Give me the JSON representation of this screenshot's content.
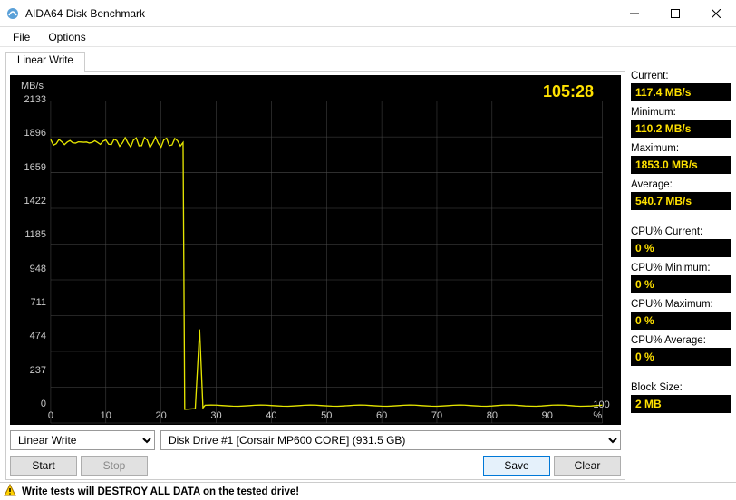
{
  "window": {
    "title": "AIDA64 Disk Benchmark"
  },
  "menu": {
    "file": "File",
    "options": "Options"
  },
  "tab": {
    "label": "Linear Write"
  },
  "chart": {
    "unit": "MB/s",
    "timer": "105:28",
    "xlim": [
      0,
      100
    ],
    "xunit": "%",
    "ylim": [
      0,
      2133
    ],
    "yticks": [
      0,
      237,
      474,
      711,
      948,
      1185,
      1422,
      1659,
      1896,
      2133
    ],
    "xticks": [
      0,
      10,
      20,
      30,
      40,
      50,
      60,
      70,
      80,
      90,
      100
    ],
    "line_color": "#e6e600",
    "grid_color": "#4a4a4a",
    "bg": "#000000",
    "plateau_y": 1860,
    "plateau_end_x": 24,
    "spike_x": 27,
    "spike_y": 620,
    "tail_y": 115
  },
  "controls": {
    "test_select": "Linear Write",
    "drive_select": "Disk Drive #1  [Corsair MP600 CORE]  (931.5 GB)",
    "start": "Start",
    "stop": "Stop",
    "save": "Save",
    "clear": "Clear"
  },
  "stats": {
    "current_label": "Current:",
    "current": "117.4 MB/s",
    "min_label": "Minimum:",
    "min": "110.2 MB/s",
    "max_label": "Maximum:",
    "max": "1853.0 MB/s",
    "avg_label": "Average:",
    "avg": "540.7 MB/s",
    "cpu_cur_label": "CPU% Current:",
    "cpu_cur": "0 %",
    "cpu_min_label": "CPU% Minimum:",
    "cpu_min": "0 %",
    "cpu_max_label": "CPU% Maximum:",
    "cpu_max": "0 %",
    "cpu_avg_label": "CPU% Average:",
    "cpu_avg": "0 %",
    "block_label": "Block Size:",
    "block": "2 MB"
  },
  "warn": "Write tests will DESTROY ALL DATA on the tested drive!"
}
